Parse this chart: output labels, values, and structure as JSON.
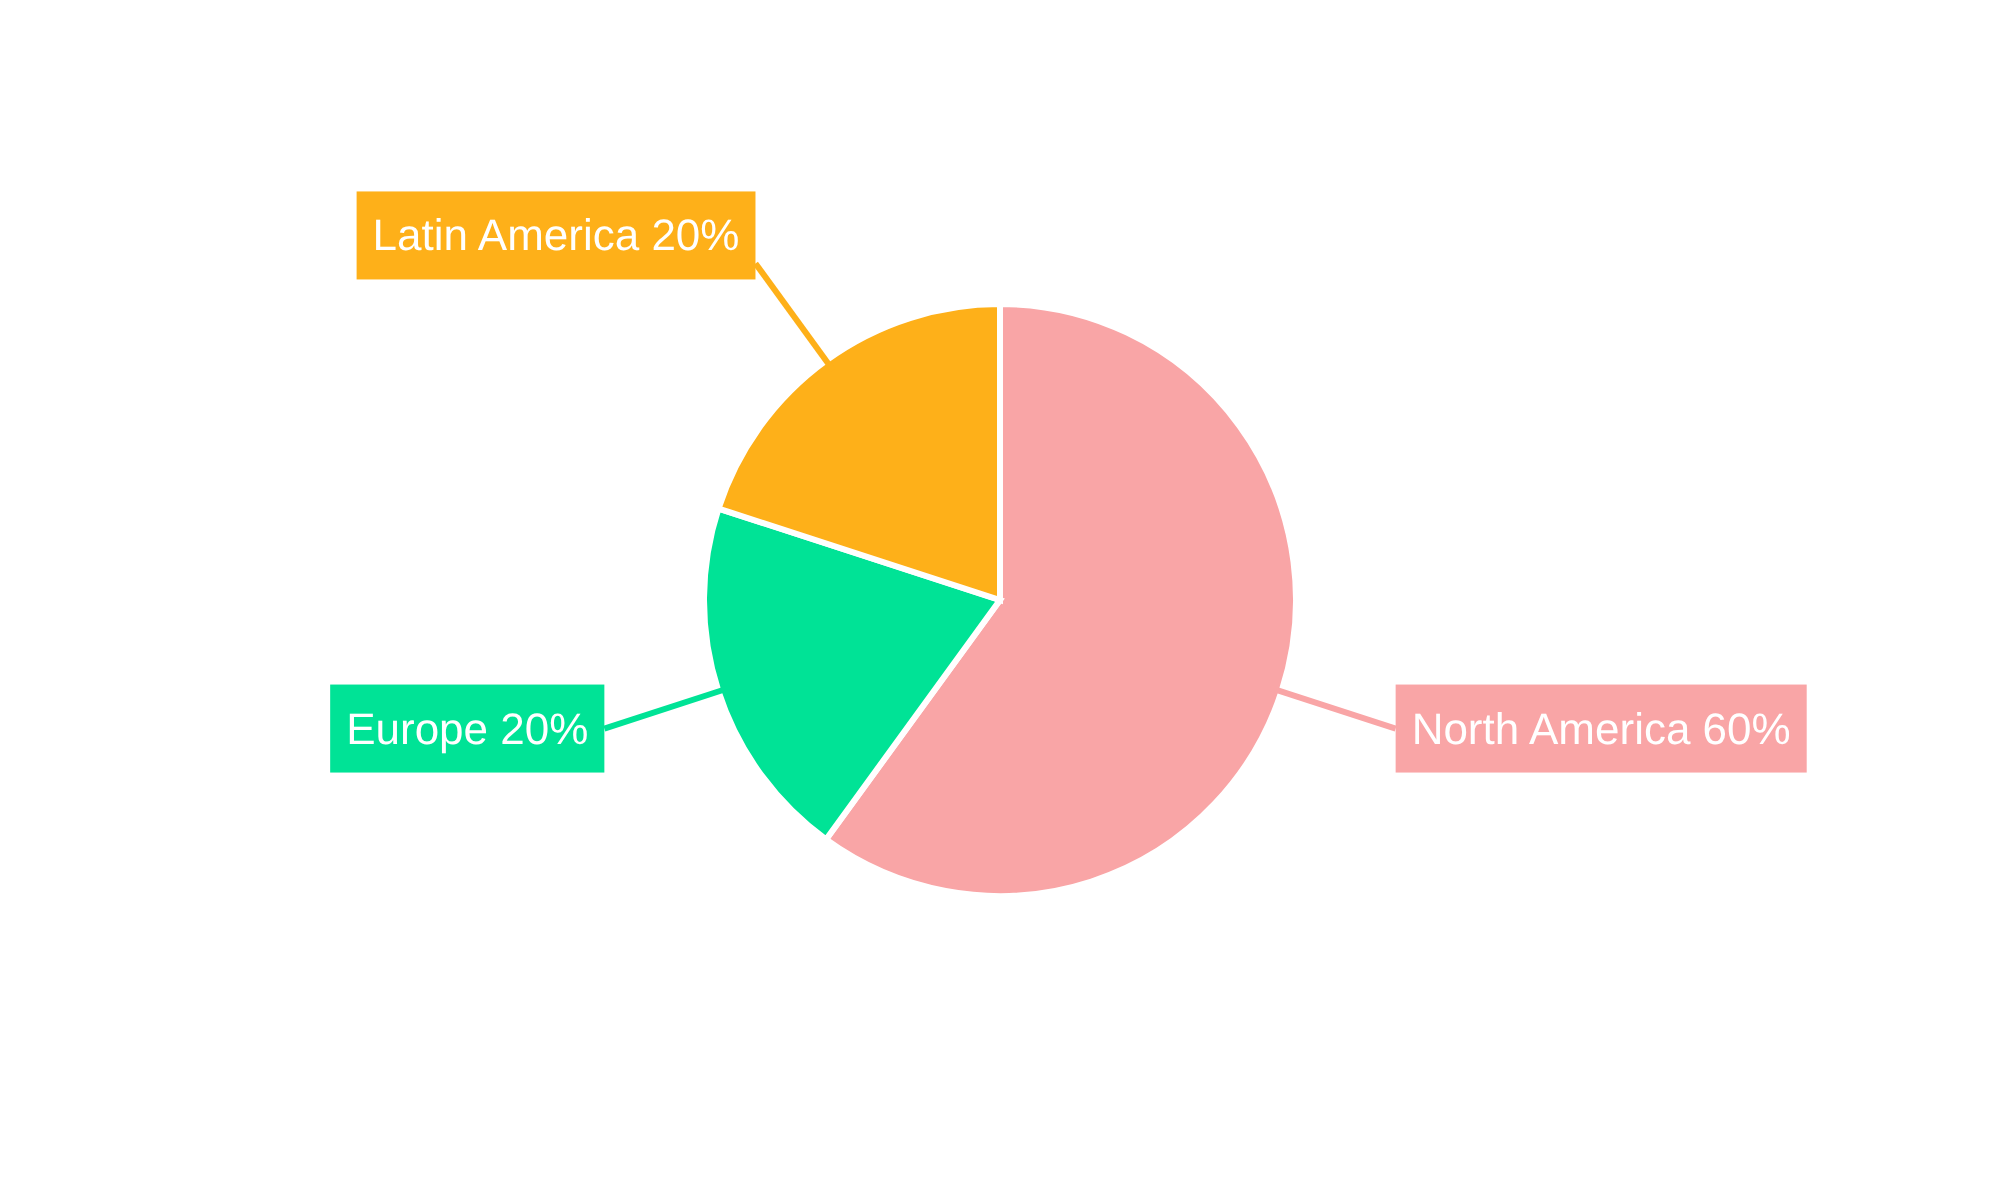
{
  "chart_data": {
    "type": "pie",
    "categories": [
      "North America",
      "Europe",
      "Latin America"
    ],
    "values": [
      60,
      20,
      20
    ],
    "colors": [
      "#f9a5a6",
      "#00e396",
      "#feb019"
    ],
    "value_labels": [
      "60%",
      "20%",
      "20%"
    ]
  }
}
